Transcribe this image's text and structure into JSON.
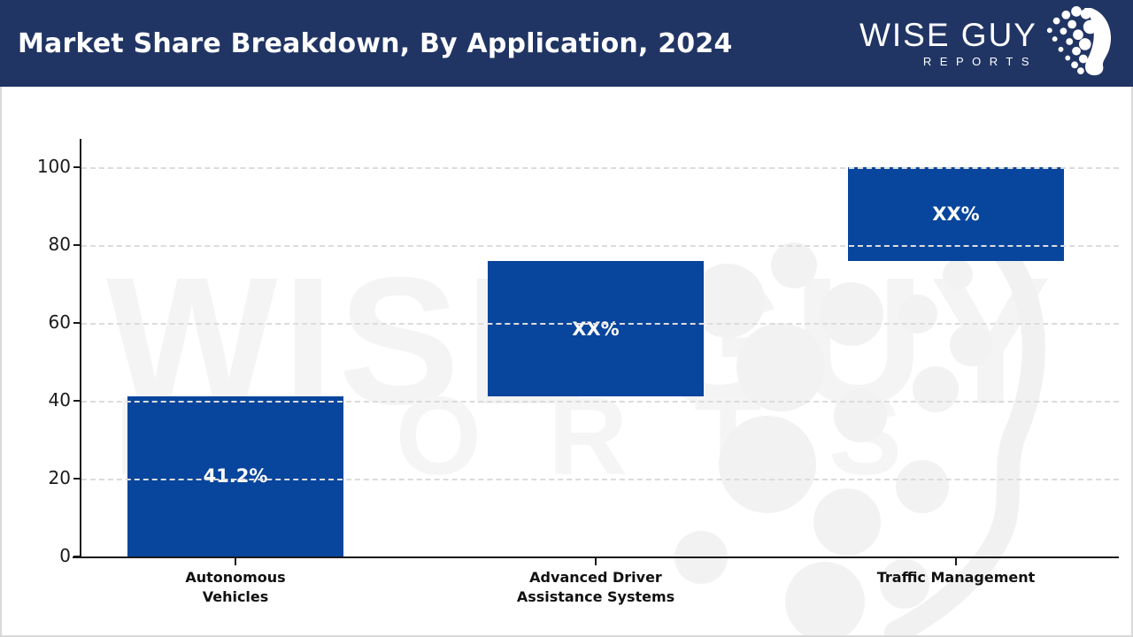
{
  "header": {
    "title": "Market Share Breakdown, By Application, 2024",
    "logo": {
      "line1": "WISE GUY",
      "line2": "REPORTS"
    }
  },
  "watermark": {
    "line1": "WISE GUY",
    "line2": "EPORTS"
  },
  "chart_data": {
    "type": "bar",
    "subtype": "floating-segment-waterfall",
    "title": "Market Share Breakdown, By Application, 2024",
    "categories": [
      "Autonomous Vehicles",
      "Advanced Driver Assistance Systems",
      "Traffic Management"
    ],
    "segments": [
      {
        "category": "Autonomous Vehicles",
        "label_lines": [
          "Autonomous",
          "Vehicles"
        ],
        "start": 0,
        "end": 41.2,
        "label": "41.2%"
      },
      {
        "category": "Advanced Driver Assistance Systems",
        "label_lines": [
          "Advanced Driver",
          "Assistance Systems"
        ],
        "start": 41.2,
        "end": 75.8,
        "label": "XX%"
      },
      {
        "category": "Traffic Management",
        "label_lines": [
          "Traffic Management"
        ],
        "start": 75.8,
        "end": 100,
        "label": "XX%"
      }
    ],
    "ylim": [
      0,
      100
    ],
    "yticks": [
      0,
      20,
      40,
      60,
      80,
      100
    ],
    "grid": "dashed-horizontal",
    "legend": "none",
    "bar_color": "#08459C",
    "bar_label_color": "#ffffff"
  },
  "colors": {
    "header_bg": "#213564",
    "bar": "#08459C",
    "grid": "#dcdcdc",
    "axis": "#1a1a1a",
    "text": "#111111",
    "watermark": "#f4f4f4",
    "page_border": "#d9d9d9"
  }
}
